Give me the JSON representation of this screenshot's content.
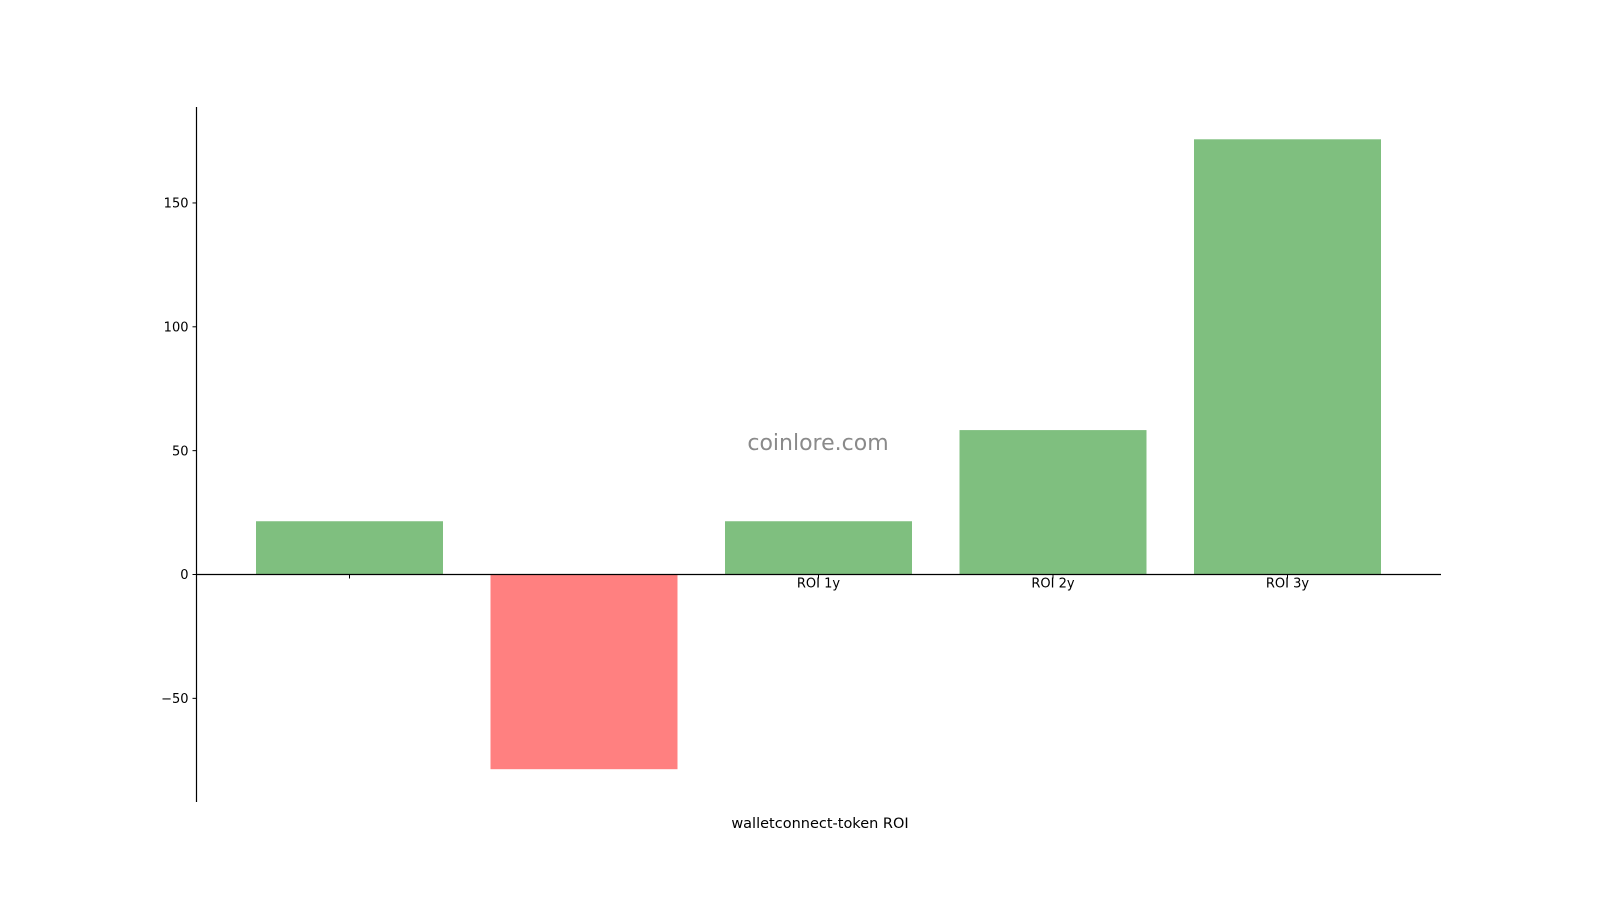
{
  "page": {
    "background": "#ffffff"
  },
  "watermark": {
    "text": "coinlore.com",
    "color": "#8a8a8a"
  },
  "chart_data": {
    "type": "bar",
    "title": "walletconnect-token ROI",
    "categories": [
      "",
      "",
      "ROI 1y",
      "ROI 2y",
      "ROI 3y"
    ],
    "values": [
      21.5,
      -78.6,
      21.5,
      58.3,
      175.7
    ],
    "bar_colors": [
      "#7fbf7f",
      "#ff8080",
      "#7fbf7f",
      "#7fbf7f",
      "#7fbf7f"
    ],
    "positive_color": "#7fbf7f",
    "negative_color": "#ff8080",
    "ytick_values": [
      150,
      100,
      50,
      0,
      -50
    ],
    "ytick_labels": [
      "150",
      "100",
      "50",
      "0",
      "−50"
    ],
    "ylim": [
      -91.8,
      188.8
    ],
    "xlabel": "walletconnect-token ROI",
    "ylabel": "",
    "grid": false,
    "legend": null,
    "axis_color": "#000000",
    "text_color": "#000000"
  }
}
